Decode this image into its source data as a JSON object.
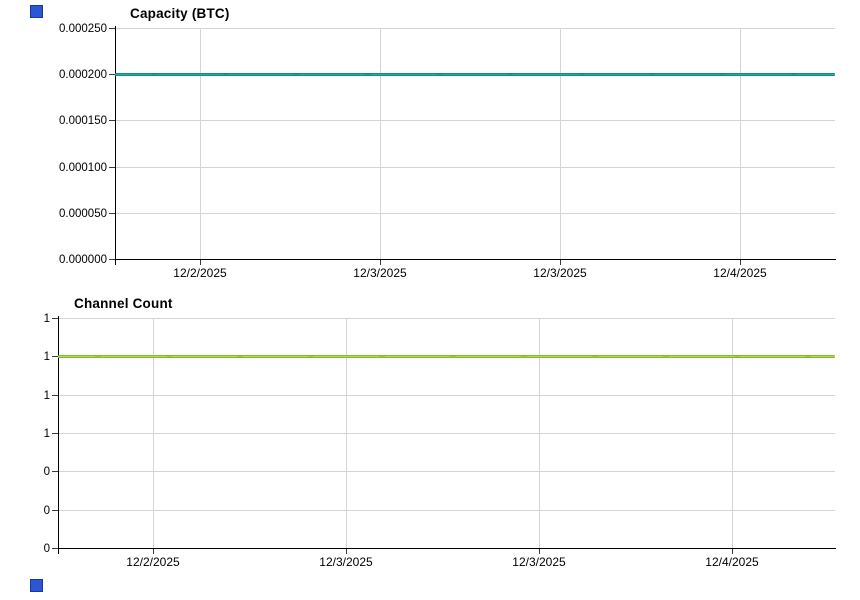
{
  "panel": {
    "background": "#ffffff",
    "selection_handle_color": "#2b57d2"
  },
  "chart_data": [
    {
      "type": "line",
      "title": "Capacity (BTC)",
      "xlabel": "",
      "ylabel": "",
      "ylim": [
        0,
        0.00025
      ],
      "grid": true,
      "legend": "none",
      "x_tick_labels": [
        "12/2/2025",
        "12/3/2025",
        "12/3/2025",
        "12/4/2025"
      ],
      "y_ticks": [
        0,
        5e-05,
        0.0001,
        0.00015,
        0.0002,
        0.00025
      ],
      "y_tick_labels_top_to_bottom": [
        "0.000250",
        "0.000200",
        "0.000150",
        "0.000100",
        "0.000050",
        "0.000000"
      ],
      "series": [
        {
          "name": "Capacity (BTC)",
          "color": "#0d8c8c",
          "color_highlight": "#49b6b6",
          "constant_value": 0.0002,
          "x_span_labels": [
            "12/2/2025",
            "12/4/2025"
          ]
        }
      ]
    },
    {
      "type": "line",
      "title": "Channel Count",
      "xlabel": "",
      "ylabel": "",
      "ylim": [
        0,
        1.2
      ],
      "grid": true,
      "legend": "none",
      "x_tick_labels": [
        "12/2/2025",
        "12/3/2025",
        "12/3/2025",
        "12/4/2025"
      ],
      "y_ticks": [
        0,
        0.2,
        0.4,
        0.6,
        0.8,
        1.0,
        1.2
      ],
      "y_tick_labels_top_to_bottom": [
        "1",
        "1",
        "1",
        "1",
        "0",
        "0",
        "0"
      ],
      "series": [
        {
          "name": "Channel Count",
          "color": "#86bd2a",
          "color_highlight": "#c4e87a",
          "constant_value": 1,
          "x_span_labels": [
            "12/2/2025",
            "12/4/2025"
          ]
        }
      ]
    }
  ]
}
